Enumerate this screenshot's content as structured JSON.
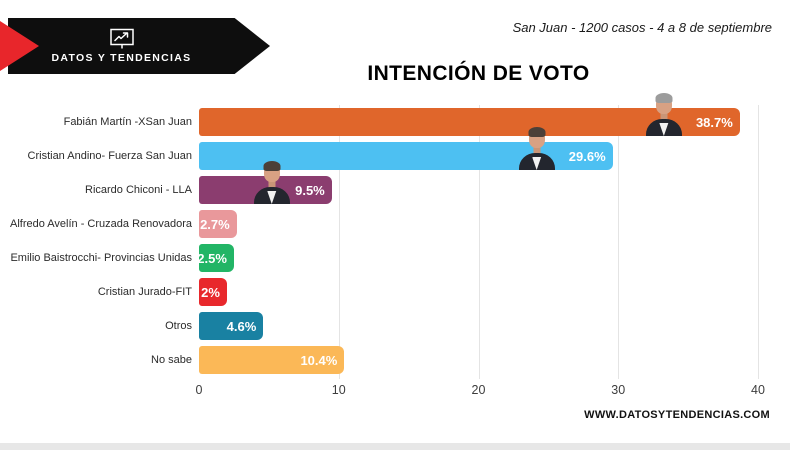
{
  "header": {
    "brand_label": "DATOS Y TENDENCIAS",
    "brand_icon": "trend-board-icon",
    "subtitle": "San Juan - 1200 casos - 4 a 8 de septiembre",
    "title": "INTENCIÓN DE VOTO"
  },
  "footer": {
    "website": "WWW.DATOSYTENDENCIAS.COM"
  },
  "colors": {
    "brand_red": "#E8262B",
    "banner_black": "#0e0e0e",
    "grid_gray": "#E4E4E4"
  },
  "chart_data": {
    "type": "bar",
    "orientation": "horizontal",
    "title": "INTENCIÓN DE VOTO",
    "categories": [
      "Fabián Martín -XSan Juan",
      "Cristian Andino- Fuerza San Juan",
      "Ricardo Chiconi - LLA",
      "Alfredo Avelín - Cruzada Renovadora",
      "Emilio Baistrocchi- Provincias Unidas",
      "Cristian Jurado-FIT",
      "Otros",
      "No sabe"
    ],
    "values": [
      38.7,
      29.6,
      9.5,
      2.7,
      2.5,
      2,
      4.6,
      10.4
    ],
    "value_labels": [
      "38.7%",
      "29.6%",
      "9.5%",
      "2.7%",
      "2.5%",
      "2%",
      "4.6%",
      "10.4%"
    ],
    "bar_colors": [
      "#E0662B",
      "#4DC0F2",
      "#8B3D6F",
      "#E9989B",
      "#22B566",
      "#E8282C",
      "#1981A2",
      "#FBB857"
    ],
    "photos": [
      true,
      true,
      true,
      false,
      false,
      false,
      false,
      false
    ],
    "xlabel": "",
    "ylabel": "",
    "xlim": [
      0,
      40
    ],
    "x_ticks": [
      0,
      10,
      20,
      30,
      40
    ],
    "grid": "vertical-light",
    "legend": "none",
    "value_label_position": "inside-end"
  }
}
